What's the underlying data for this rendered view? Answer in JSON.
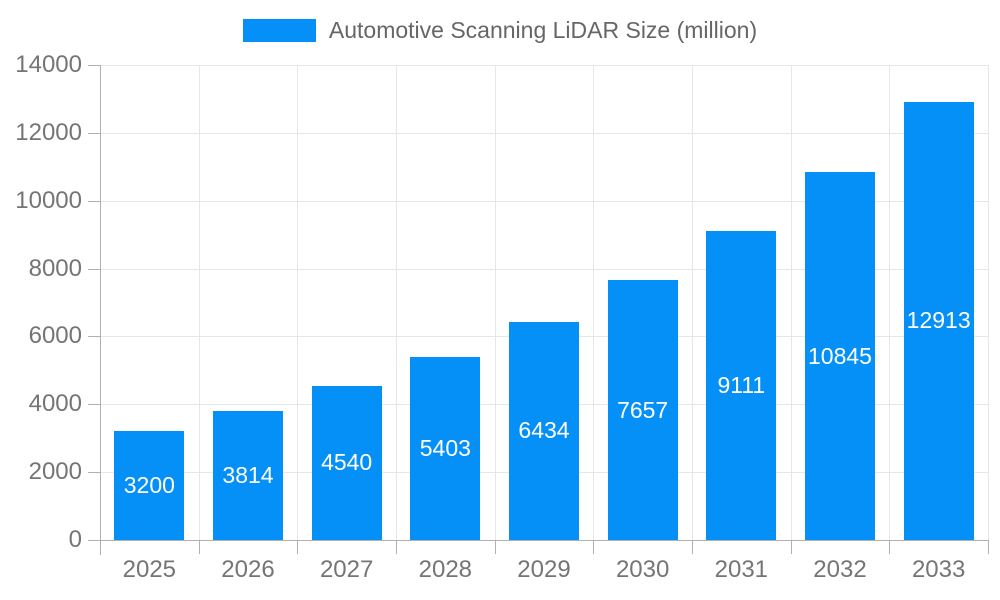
{
  "chart_data": {
    "type": "bar",
    "title": "Automotive Scanning LiDAR Size (million)",
    "categories": [
      "2025",
      "2026",
      "2027",
      "2028",
      "2029",
      "2030",
      "2031",
      "2032",
      "2033"
    ],
    "series": [
      {
        "name": "Automotive Scanning LiDAR Size (million)",
        "values": [
          3200,
          3814,
          4540,
          5403,
          6434,
          7657,
          9111,
          10845,
          12913
        ]
      }
    ],
    "xlabel": "",
    "ylabel": "",
    "ylim": [
      0,
      14000
    ],
    "yticks": [
      0,
      2000,
      4000,
      6000,
      8000,
      10000,
      12000,
      14000
    ],
    "grid": true,
    "legend_position": "top-center",
    "value_labels_position": "inside-center"
  },
  "colors": {
    "bar": "#0590F8",
    "axis_text": "#757575",
    "legend_text": "#666666",
    "grid_line": "#e6e6e6",
    "axis_line": "#b0b0b0",
    "value_label_text": "#ffffff",
    "background": "#ffffff"
  }
}
